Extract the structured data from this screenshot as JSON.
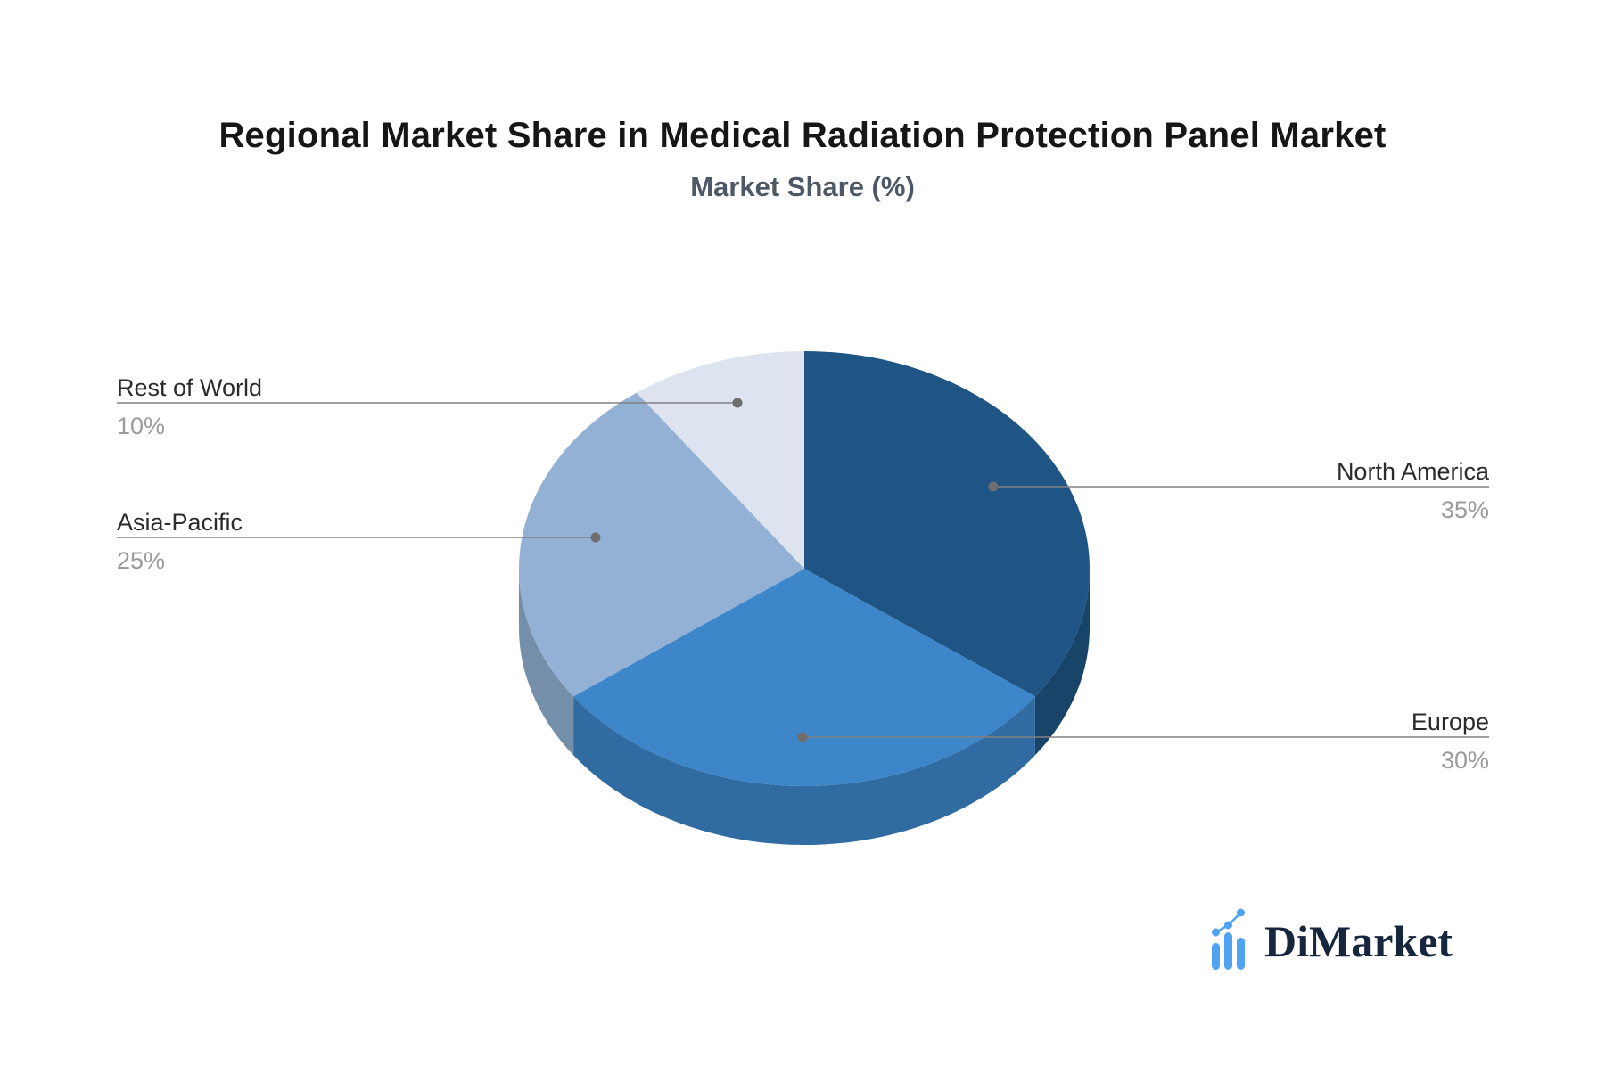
{
  "title": "Regional Market Share in Medical Radiation Protection Panel Market",
  "subtitle": "Market Share (%)",
  "regions": [
    {
      "name": "North America",
      "pct": "35%"
    },
    {
      "name": "Europe",
      "pct": "30%"
    },
    {
      "name": "Asia-Pacific",
      "pct": "25%"
    },
    {
      "name": "Rest of World",
      "pct": "10%"
    }
  ],
  "chart_data": {
    "type": "pie",
    "style": "3d",
    "title": "Regional Market Share in Medical Radiation Protection Panel Market",
    "subtitle": "Market Share (%)",
    "categories": [
      "North America",
      "Europe",
      "Asia-Pacific",
      "Rest of World"
    ],
    "values": [
      35,
      30,
      25,
      10
    ],
    "unit": "%",
    "data_labels": [
      "35%",
      "30%",
      "25%",
      "10%"
    ],
    "colors": [
      "#1F5585",
      "#3C86C9",
      "#92B1D5",
      "#DDE4EF"
    ],
    "start_angle": "12-o-clock",
    "direction": "clockwise",
    "legend_position": "outside-callouts",
    "callout_line_color": "#808080",
    "label_color": "#2b2b2b",
    "value_color": "#9b9b9b"
  },
  "logo": {
    "text": "DiMarket",
    "icon": "bar-chart-trend-icon",
    "icon_color": "#4FA3F1",
    "text_color": "#16263c"
  }
}
